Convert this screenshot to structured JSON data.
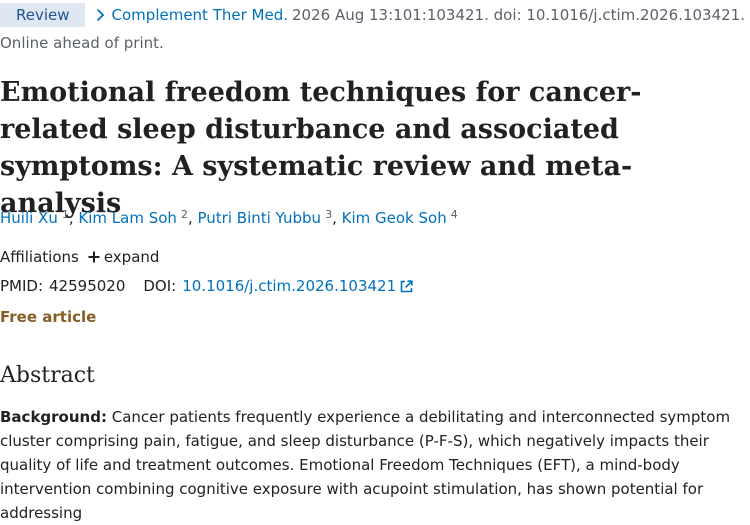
{
  "citation": {
    "badge": "Review",
    "journal": "Complement Ther Med.",
    "details": "2026 Aug 13:101:103421. doi: 10.1016/j.ctim.2026.103421.",
    "status": "Online ahead of print."
  },
  "title": "Emotional freedom techniques for cancer-related sleep disturbance and associated symptoms: A systematic review and meta-analysis",
  "authors": [
    {
      "name": "Huili Xu",
      "affiliation": "1"
    },
    {
      "name": "Kim Lam Soh",
      "affiliation": "2"
    },
    {
      "name": "Putri Binti Yubbu",
      "affiliation": "3"
    },
    {
      "name": "Kim Geok Soh",
      "affiliation": "4"
    }
  ],
  "author_separator": ",",
  "affiliations": {
    "label": "Affiliations",
    "expand_label": "expand"
  },
  "identifiers": {
    "pmid_label": "PMID:",
    "pmid": "42595020",
    "doi_label": "DOI:",
    "doi": "10.1016/j.ctim.2026.103421"
  },
  "free_article": "Free article",
  "abstract": {
    "heading": "Abstract",
    "background_label": "Background:",
    "background_text": "Cancer patients frequently experience a debilitating and interconnected symptom cluster comprising pain, fatigue, and sleep disturbance (P-F-S), which negatively impacts their quality of life and treatment outcomes. Emotional Freedom Techniques (EFT), a mind-body intervention combining cognitive exposure with acupoint stimulation, has shown potential for addressing"
  },
  "icons": {
    "breadcrumb": "chevron-right-icon",
    "expand": "plus-icon",
    "doi_link": "external-link-icon"
  },
  "colors": {
    "link": "#0071bc",
    "badge_bg": "#dfe7f1",
    "free_article": "#855d25",
    "muted": "#5b616b"
  }
}
